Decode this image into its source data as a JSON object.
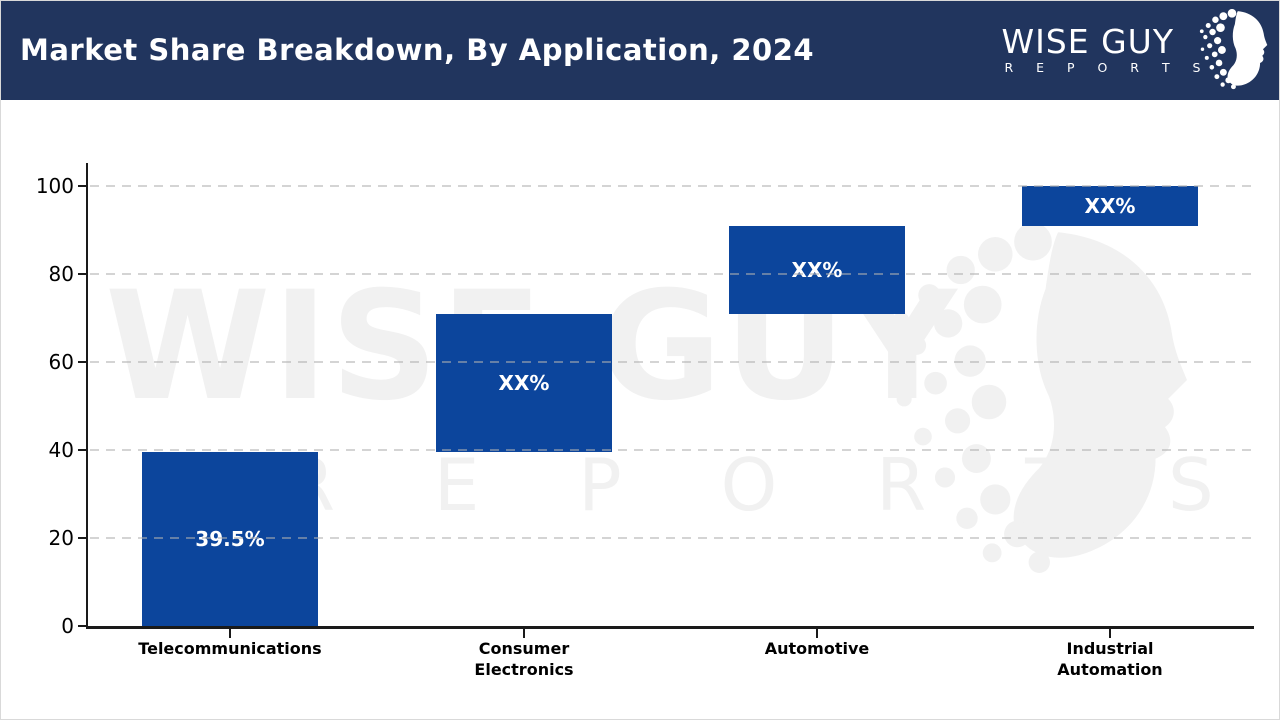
{
  "header": {
    "title": "Market Share Breakdown, By Application, 2024",
    "logo": {
      "primary": "WISE GUY",
      "secondary": "R E P O R T S",
      "icon": "dotted-head-profile"
    }
  },
  "watermark": {
    "line1": "WISE GUY",
    "line2": "R E P O R T S"
  },
  "colors": {
    "header_bg": "#21355e",
    "bar_blue": "#0c459c",
    "bar_label_text": "#ffffff",
    "axis": "#1a1a1a",
    "gridline": "#c9c9c9",
    "watermark": "#f1f1f1"
  },
  "chart_data": {
    "type": "bar",
    "subtype": "waterfall-floating-bars",
    "title": "Market Share Breakdown, By Application, 2024",
    "categories": [
      "Telecommunications",
      "Consumer Electronics",
      "Automotive",
      "Industrial Automation"
    ],
    "segments": [
      {
        "category": "Telecommunications",
        "start": 0,
        "end": 39.5,
        "label": "39.5%"
      },
      {
        "category": "Consumer Electronics",
        "start": 39.5,
        "end": 71,
        "label": "XX%"
      },
      {
        "category": "Automotive",
        "start": 71,
        "end": 91,
        "label": "XX%"
      },
      {
        "category": "Industrial Automation",
        "start": 91,
        "end": 100,
        "label": "XX%"
      }
    ],
    "ylabel": "",
    "xlabel": "",
    "ylim": [
      0,
      100
    ],
    "yticks": [
      0,
      20,
      40,
      60,
      80,
      100
    ],
    "grid": "horizontal-dashed",
    "legend": "none",
    "bar_color": "#0c459c"
  }
}
